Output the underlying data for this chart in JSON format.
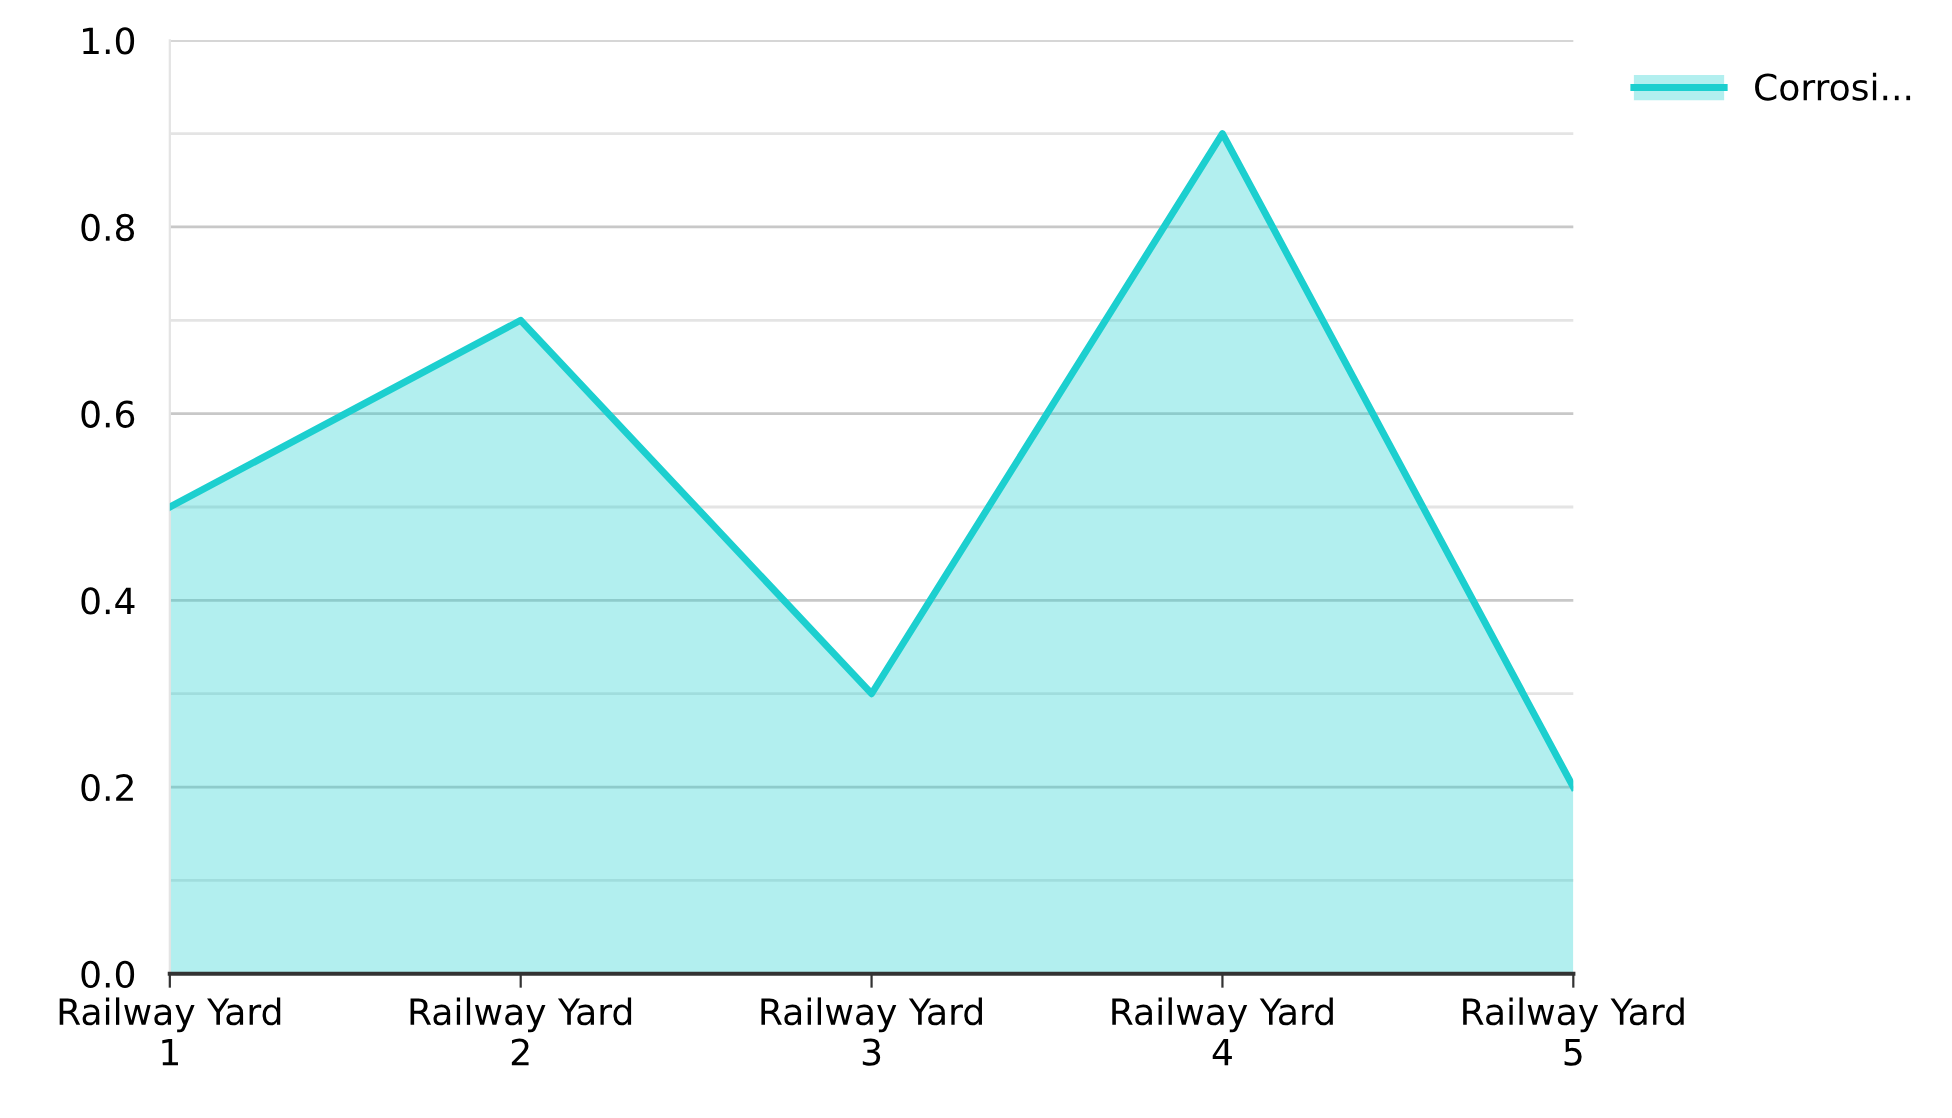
{
  "chart_data": {
    "type": "area",
    "categories": [
      "Railway Yard 1",
      "Railway Yard 2",
      "Railway Yard 3",
      "Railway Yard 4",
      "Railway Yard 5"
    ],
    "series": [
      {
        "name": "Corrosi...",
        "color": "#1ccfcf",
        "values": [
          0.5,
          0.7,
          0.3,
          0.9,
          0.2
        ]
      }
    ],
    "ylim": [
      0,
      1.0
    ],
    "yticks": [
      {
        "value": 0,
        "label": "0.0"
      },
      0.2,
      0.4,
      0.6,
      0.8,
      {
        "value": 1,
        "label": "1.0"
      }
    ],
    "grid": "y",
    "legend": "top right",
    "marker": "none",
    "line_style": "solid"
  }
}
